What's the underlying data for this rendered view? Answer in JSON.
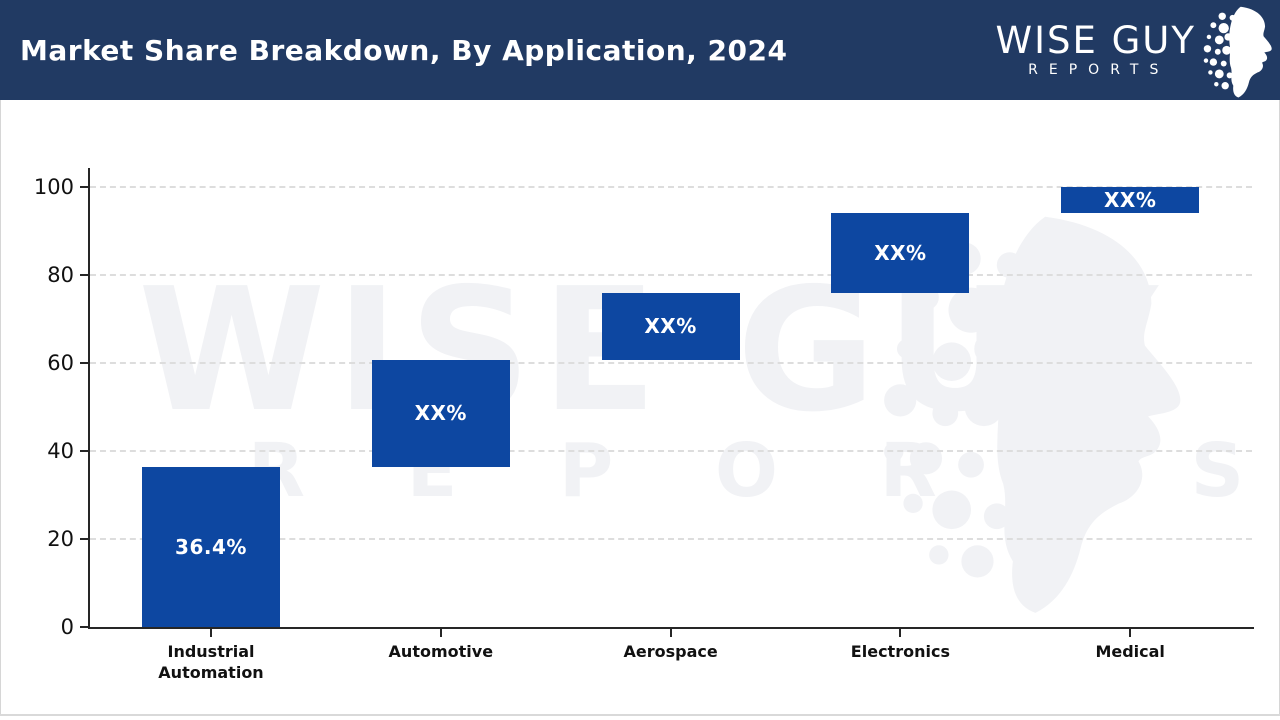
{
  "header": {
    "title": "Market Share Breakdown, By Application, 2024",
    "bg_color": "#213a63",
    "brand": {
      "line1": "WISE GUY",
      "line2": "REPORTS",
      "logo_icon": "dotted-face-profile-icon",
      "color": "#ffffff"
    }
  },
  "watermark": {
    "line1": "WISE GUY",
    "line2": "REPORTS",
    "icon": "dotted-face-profile-icon",
    "color": "#f1f2f5"
  },
  "chart_data": {
    "type": "bar",
    "subtype": "waterfall",
    "title": "Market Share Breakdown, By Application, 2024",
    "categories": [
      "Industrial Automation",
      "Automotive",
      "Aerospace",
      "Electronics",
      "Medical"
    ],
    "segments": [
      {
        "category": "Industrial Automation",
        "start": 0,
        "end": 36.4,
        "label": "36.4%"
      },
      {
        "category": "Automotive",
        "start": 36.4,
        "end": 60.7,
        "label": "XX%"
      },
      {
        "category": "Aerospace",
        "start": 60.7,
        "end": 75.9,
        "label": "XX%"
      },
      {
        "category": "Electronics",
        "start": 75.9,
        "end": 94.1,
        "label": "XX%"
      },
      {
        "category": "Medical",
        "start": 94.1,
        "end": 100,
        "label": "XX%"
      }
    ],
    "y_ticks": [
      0,
      20,
      40,
      60,
      80,
      100
    ],
    "ylim": [
      0,
      100
    ],
    "xlabel": "",
    "ylabel": "",
    "bar_color": "#0d47a1",
    "bar_label_color": "#ffffff",
    "grid": "horizontal-dashed",
    "legend": "none"
  }
}
